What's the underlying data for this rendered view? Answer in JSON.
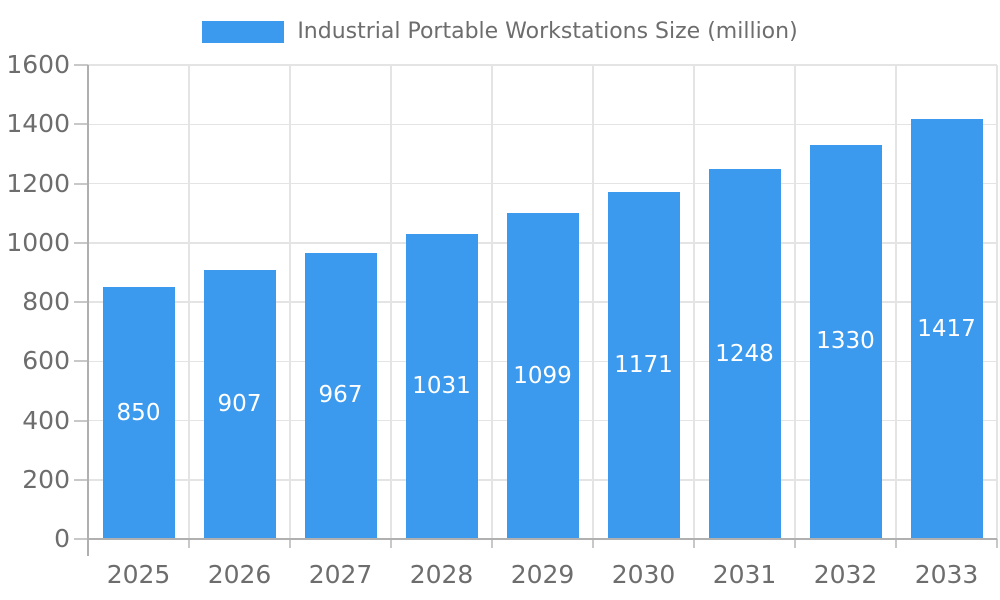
{
  "chart_data": {
    "type": "bar",
    "title": "Industrial Portable Workstations Size (million)",
    "categories": [
      "2025",
      "2026",
      "2027",
      "2028",
      "2029",
      "2030",
      "2031",
      "2032",
      "2033"
    ],
    "values": [
      850,
      907,
      967,
      1031,
      1099,
      1171,
      1248,
      1330,
      1417
    ],
    "value_labels_shown": true,
    "value_label_position": "inside-center",
    "xlabel": "",
    "ylabel": "",
    "ylim": [
      0,
      1600
    ],
    "y_ticks": [
      0,
      200,
      400,
      600,
      800,
      1000,
      1200,
      1400,
      1600
    ],
    "grid": true,
    "legend_position": "top-center",
    "colors": {
      "bar": "#3b9aee",
      "value_label": "#ffffff",
      "axis_text": "#6d6d6d",
      "title_text": "#6d6d6d",
      "gridline": "#e4e4e4",
      "axis_line": "#b0b0b0",
      "tick_line": "#c8c8c8",
      "background": "#ffffff"
    }
  }
}
